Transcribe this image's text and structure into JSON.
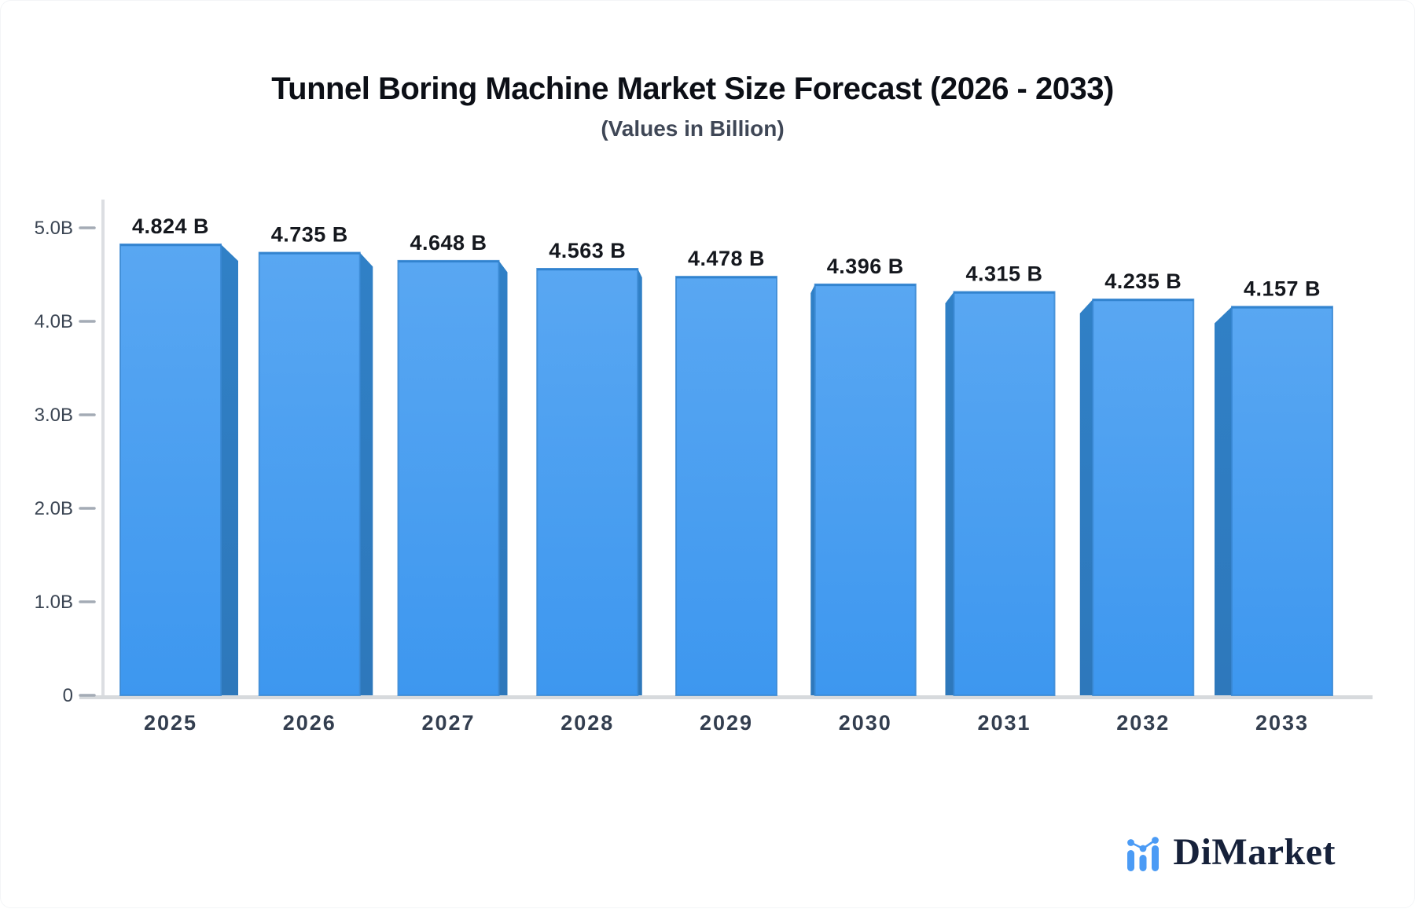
{
  "header": {
    "title": "Tunnel Boring Machine Market Size Forecast (2026 - 2033)",
    "subtitle": "(Values in Billion)"
  },
  "chart_data": {
    "type": "bar",
    "title": "Tunnel Boring Machine Market Size Forecast (2026 - 2033)",
    "subtitle": "(Values in Billion)",
    "unit": "Billion",
    "categories": [
      "2025",
      "2026",
      "2027",
      "2028",
      "2029",
      "2030",
      "2031",
      "2032",
      "2033"
    ],
    "values": [
      4.824,
      4.735,
      4.648,
      4.563,
      4.478,
      4.396,
      4.315,
      4.235,
      4.157
    ],
    "value_labels": [
      "4.824 B",
      "4.735 B",
      "4.648 B",
      "4.563 B",
      "4.478 B",
      "4.396 B",
      "4.315 B",
      "4.235 B",
      "4.157 B"
    ],
    "ylim": [
      0,
      5
    ],
    "yticks": [
      {
        "value": 0,
        "label": "0"
      },
      {
        "value": 1,
        "label": "1.0B"
      },
      {
        "value": 2,
        "label": "2.0B"
      },
      {
        "value": 3,
        "label": "3.0B"
      },
      {
        "value": 4,
        "label": "4.0B"
      },
      {
        "value": 5,
        "label": "5.0B"
      }
    ],
    "grid": false,
    "legend": false,
    "style": "3d-perspective-center-vanishing-point",
    "colors": {
      "bar_face_top": "#59a7f2",
      "bar_face_bottom": "#3d97ef",
      "bar_edge": "#3a88d4",
      "bar_side": "#2e78bb",
      "axis_line": "#dcdee2",
      "baseline": "#d7dadd",
      "tick_mark": "#a4abb5",
      "tick_label": "#3b4553",
      "x_label": "#333e4f",
      "value_label": "#15181e"
    }
  },
  "footer": {
    "logo": {
      "text": "DiMarket",
      "icon": "bar-chart-logo-icon",
      "text_color": "#16213a",
      "icon_color": "#4b9bf5"
    }
  }
}
